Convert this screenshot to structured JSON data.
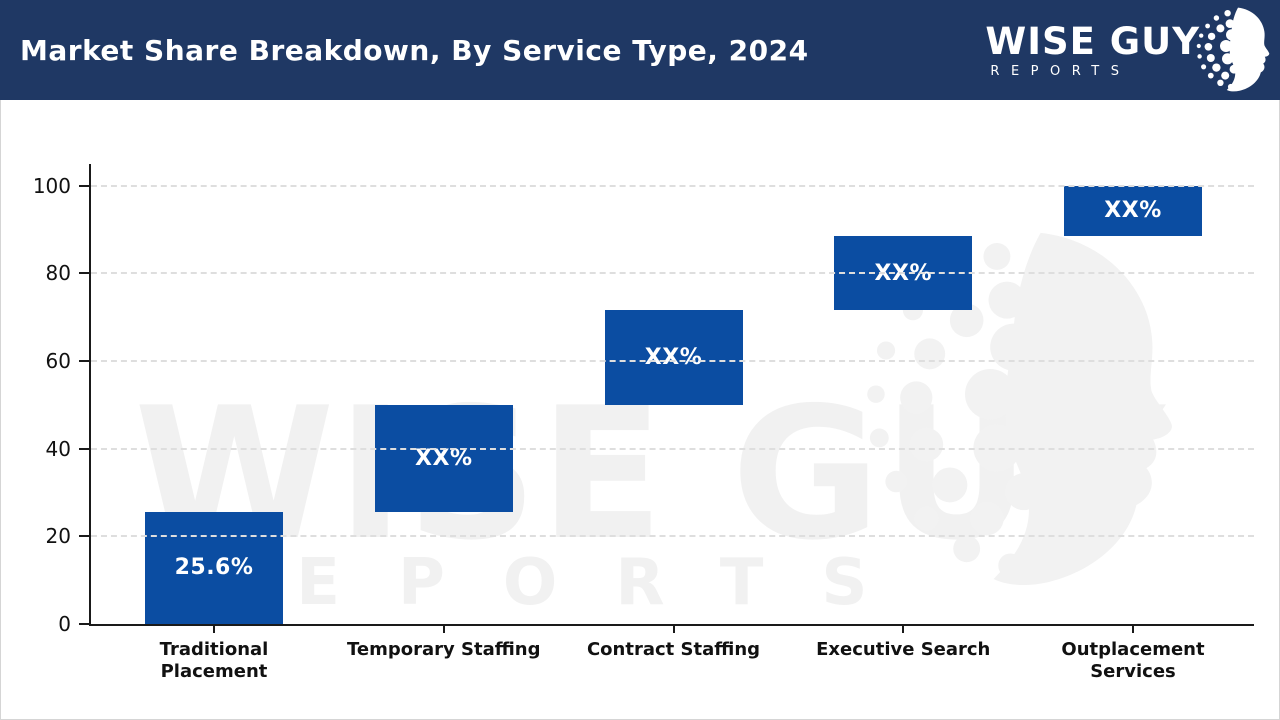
{
  "header": {
    "title": "Market Share Breakdown, By Service Type, 2024",
    "logo": {
      "line1": "WISE GUY",
      "line2": "REPORTS"
    }
  },
  "watermark": {
    "line1": "WISE GUY",
    "line2": "REPORTS"
  },
  "colors": {
    "header_bg": "#1f3864",
    "bar": "#0b4da2",
    "bar_label": "#ffffff",
    "axis": "#1a1a1a",
    "grid": "#dedede",
    "watermark": "#f1f1f1"
  },
  "chart_data": {
    "type": "bar",
    "subtype": "waterfall",
    "title": "Market Share Breakdown, By Service Type, 2024",
    "xlabel": "",
    "ylabel": "",
    "ylim": [
      0,
      105
    ],
    "yticks": [
      0,
      20,
      40,
      60,
      80,
      100
    ],
    "grid": "horizontal-dashed",
    "legend": "none",
    "categories": [
      "Traditional\nPlacement",
      "Temporary Staffing",
      "Contract Staffing",
      "Executive Search",
      "Outplacement\nServices"
    ],
    "segments": [
      {
        "category": "Traditional\nPlacement",
        "start": 0,
        "end": 25.6,
        "label": "25.6%"
      },
      {
        "category": "Temporary Staffing",
        "start": 25.6,
        "end": 50,
        "label": "XX%"
      },
      {
        "category": "Contract Staffing",
        "start": 50,
        "end": 71.5,
        "label": "XX%"
      },
      {
        "category": "Executive Search",
        "start": 71.5,
        "end": 88.5,
        "label": "XX%"
      },
      {
        "category": "Outplacement\nServices",
        "start": 88.5,
        "end": 100,
        "label": "XX%"
      }
    ]
  }
}
